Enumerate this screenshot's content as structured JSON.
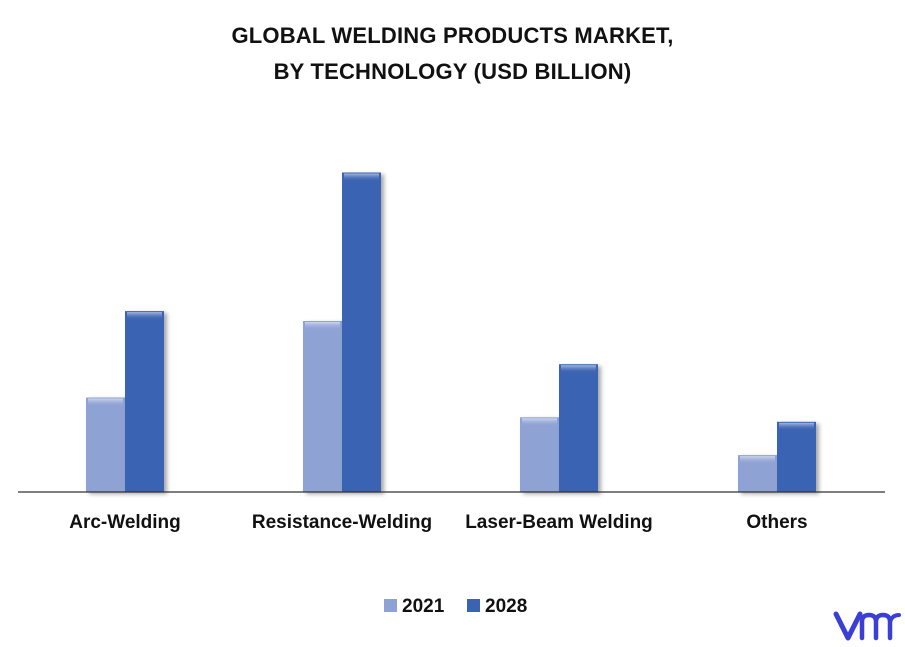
{
  "chart_data": {
    "type": "bar",
    "title": [
      "GLOBAL WELDING PRODUCTS MARKET,",
      "BY TECHNOLOGY (USD BILLION)"
    ],
    "categories": [
      "Arc-Welding",
      "Resistance-Welding",
      "Laser-Beam Welding",
      "Others"
    ],
    "series": [
      {
        "name": "2021",
        "values": [
          10.5,
          19.0,
          8.3,
          4.1
        ],
        "color": "#8fa2d4"
      },
      {
        "name": "2028",
        "values": [
          20.1,
          35.5,
          14.2,
          7.8
        ],
        "color": "#3a63b3"
      }
    ],
    "ylim": [
      0,
      36
    ],
    "grid": false,
    "y_axis_visible": false,
    "legend_position": "bottom"
  },
  "brand": {
    "logo_icon": "vmr-logo-icon",
    "logo_color": "#3b3fd6"
  }
}
